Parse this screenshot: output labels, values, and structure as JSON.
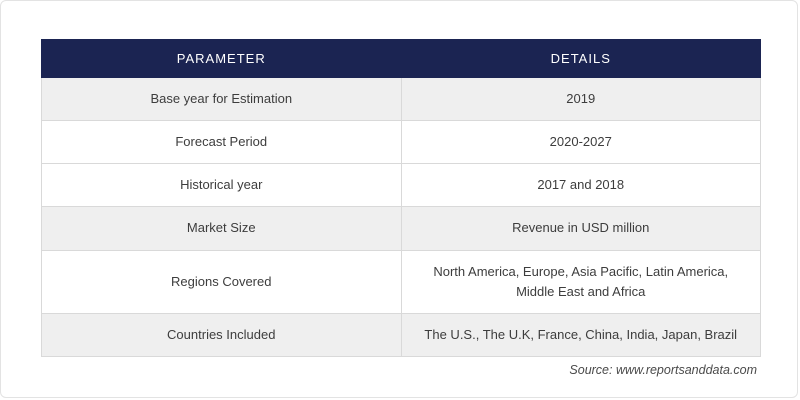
{
  "chart_data": {
    "type": "table",
    "title": "",
    "columns": [
      "PARAMETER",
      "DETAILS"
    ],
    "rows": [
      [
        "Base year for Estimation",
        "2019"
      ],
      [
        "Forecast Period",
        "2020-2027"
      ],
      [
        "Historical year",
        "2017 and 2018"
      ],
      [
        "Market Size",
        "Revenue in USD million"
      ],
      [
        "Regions Covered",
        "North America, Europe, Asia Pacific, Latin America, Middle East and Africa"
      ],
      [
        "Countries Included",
        "The U.S., The U.K, France, China, India, Japan, Brazil"
      ]
    ],
    "source": "Source: www.reportsanddata.com"
  },
  "table": {
    "headers": [
      "PARAMETER",
      "DETAILS"
    ],
    "rows": [
      {
        "parameter": "Base year for Estimation",
        "details": "2019",
        "shaded": true
      },
      {
        "parameter": "Forecast Period",
        "details": "2020-2027",
        "shaded": false
      },
      {
        "parameter": "Historical year",
        "details": "2017 and 2018",
        "shaded": false
      },
      {
        "parameter": "Market Size",
        "details": "Revenue in USD million",
        "shaded": true
      },
      {
        "parameter": "Regions Covered",
        "details": "North America, Europe, Asia Pacific, Latin America, Middle East and Africa",
        "shaded": false
      },
      {
        "parameter": "Countries Included",
        "details": "The U.S., The U.K, France, China, India, Japan, Brazil",
        "shaded": true
      }
    ]
  },
  "footer": {
    "source": "Source: www.reportsanddata.com"
  },
  "colors": {
    "header_bg": "#1b2452",
    "header_text": "#ffffff",
    "row_shaded_bg": "#efefef",
    "row_plain_bg": "#ffffff",
    "cell_border": "#d9d9d9",
    "body_text": "#3d3d3d"
  }
}
